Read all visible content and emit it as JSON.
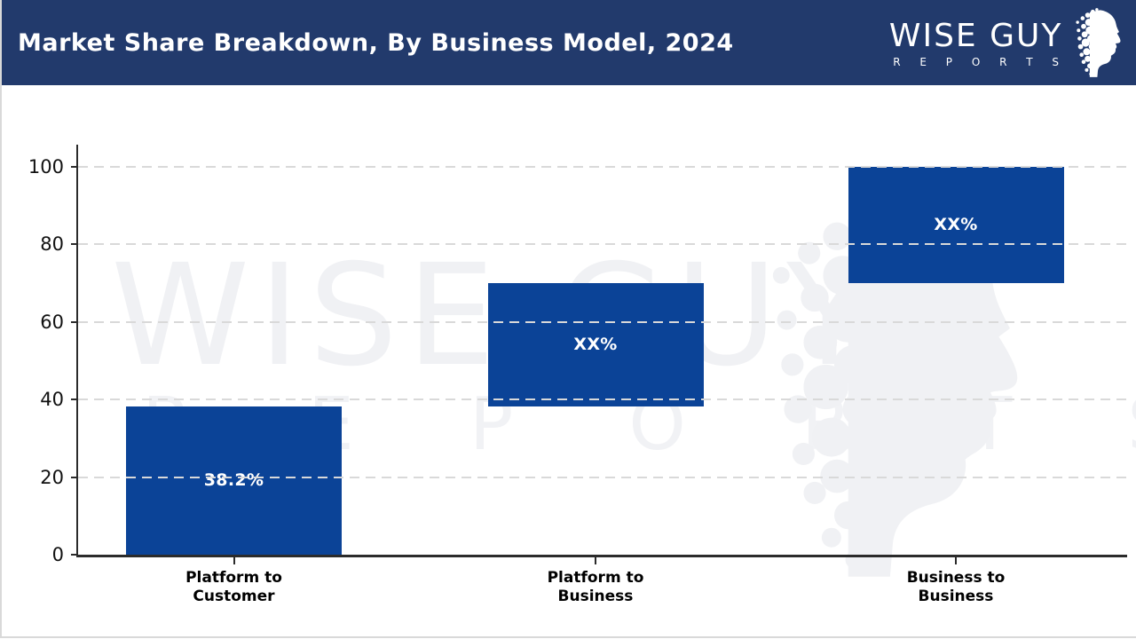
{
  "header": {
    "title": "Market Share Breakdown, By Business Model, 2024",
    "logo": {
      "line1": "WISE GUY",
      "line2": "R E P O R T S"
    }
  },
  "watermark": {
    "line1": "WISE GUY",
    "line2": "R E P O R T S"
  },
  "chart_data": {
    "type": "bar",
    "variant": "waterfall-floating-segments",
    "title": "Market Share Breakdown, By Business Model, 2024",
    "categories": [
      "Platform to\nCustomer",
      "Platform to\nBusiness",
      "Business to\nBusiness"
    ],
    "segments": [
      {
        "category": "Platform to Customer",
        "start": 0,
        "end": 38.2,
        "label": "38.2%"
      },
      {
        "category": "Platform to Business",
        "start": 38.2,
        "end": 70,
        "label": "XX%"
      },
      {
        "category": "Business to Business",
        "start": 70,
        "end": 100,
        "label": "XX%"
      }
    ],
    "ylim": [
      0,
      100
    ],
    "yticks": [
      0,
      20,
      40,
      60,
      80,
      100
    ],
    "xlabel": "",
    "ylabel": "",
    "grid": "horizontal-dashed",
    "legend": "none",
    "bar_color": "#0B4397",
    "bar_label_color": "#FFFFFF"
  },
  "colors": {
    "header_bg": "#223A6C",
    "bar": "#0B4397",
    "gridline": "#D9D9D9",
    "axis": "#2B2B2B",
    "watermark": "#F0F1F4",
    "title_text": "#FFFFFF"
  }
}
